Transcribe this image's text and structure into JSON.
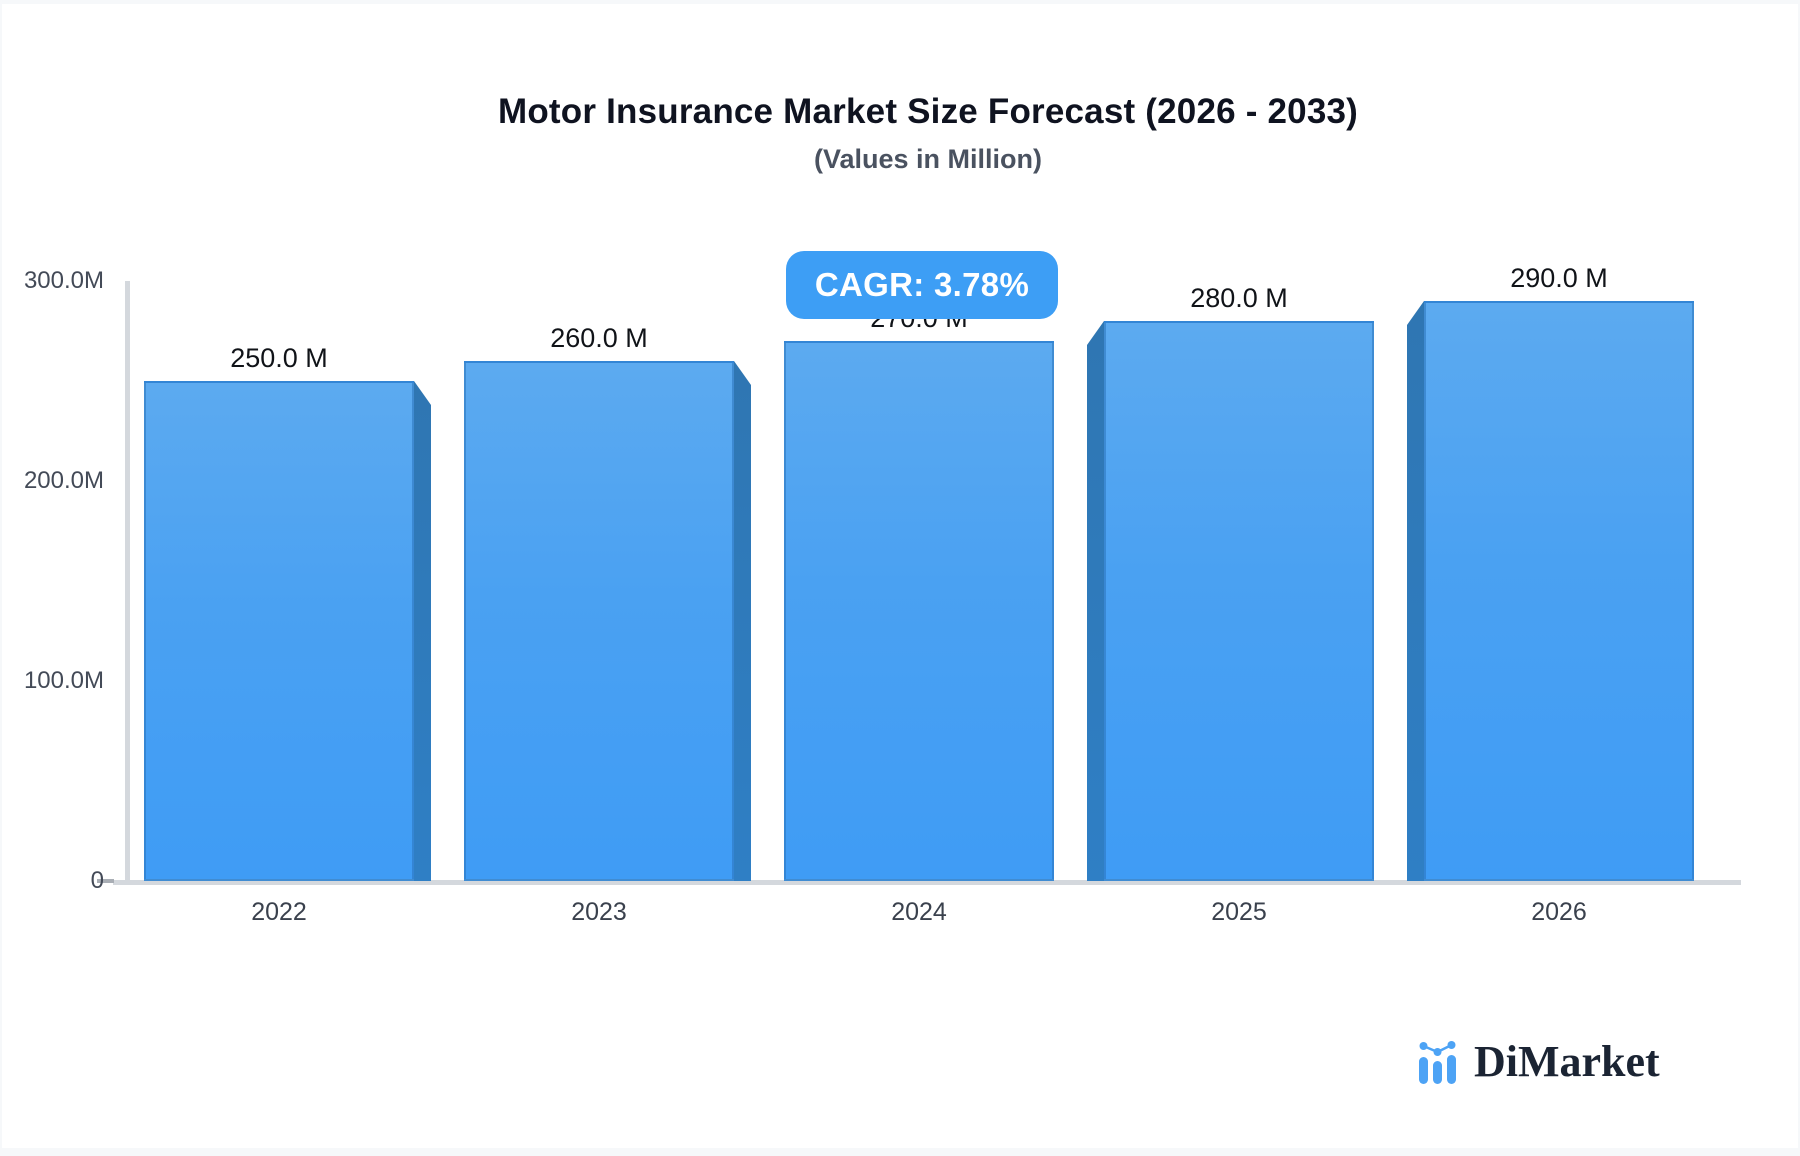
{
  "page": {
    "background": "#f6f8fa",
    "card_background": "#ffffff"
  },
  "header": {
    "title": "Motor Insurance Market Size Forecast (2026 - 2033)",
    "subtitle": "(Values in Million)"
  },
  "badge": {
    "label": "CAGR: 3.78%",
    "background": "#3d9ef5",
    "text_color": "#ffffff"
  },
  "chart_data": {
    "type": "bar",
    "title": "Motor Insurance Market Size Forecast (2026 - 2033)",
    "subtitle": "(Values in Million)",
    "unit": "Million",
    "categories": [
      "2022",
      "2023",
      "2024",
      "2025",
      "2026"
    ],
    "values": [
      250,
      260,
      270,
      280,
      290
    ],
    "bar_labels": [
      "250.0 M",
      "260.0 M",
      "270.0 M",
      "280.0 M",
      "290.0 M"
    ],
    "ylim": [
      0,
      300
    ],
    "yticks": [
      {
        "label": "300.0M",
        "value": 300
      },
      {
        "label": "200.0M",
        "value": 200
      },
      {
        "label": "100.0M",
        "value": 100
      },
      {
        "label": "0",
        "value": 0
      }
    ],
    "grid": false,
    "legend": "none",
    "annotation": "CAGR: 3.78%",
    "bar_color_top": "#5caaf0",
    "bar_color_bottom": "#3f9cf5",
    "bar_side_color": "#2f7ab9",
    "axis_color": "#d4d8dd",
    "style": "3d-perspective-columns"
  },
  "logo": {
    "icon": "bar-line-chart-icon",
    "text": "DiMarket",
    "text_color": "#1b2433",
    "icon_color": "#4da3f5"
  }
}
